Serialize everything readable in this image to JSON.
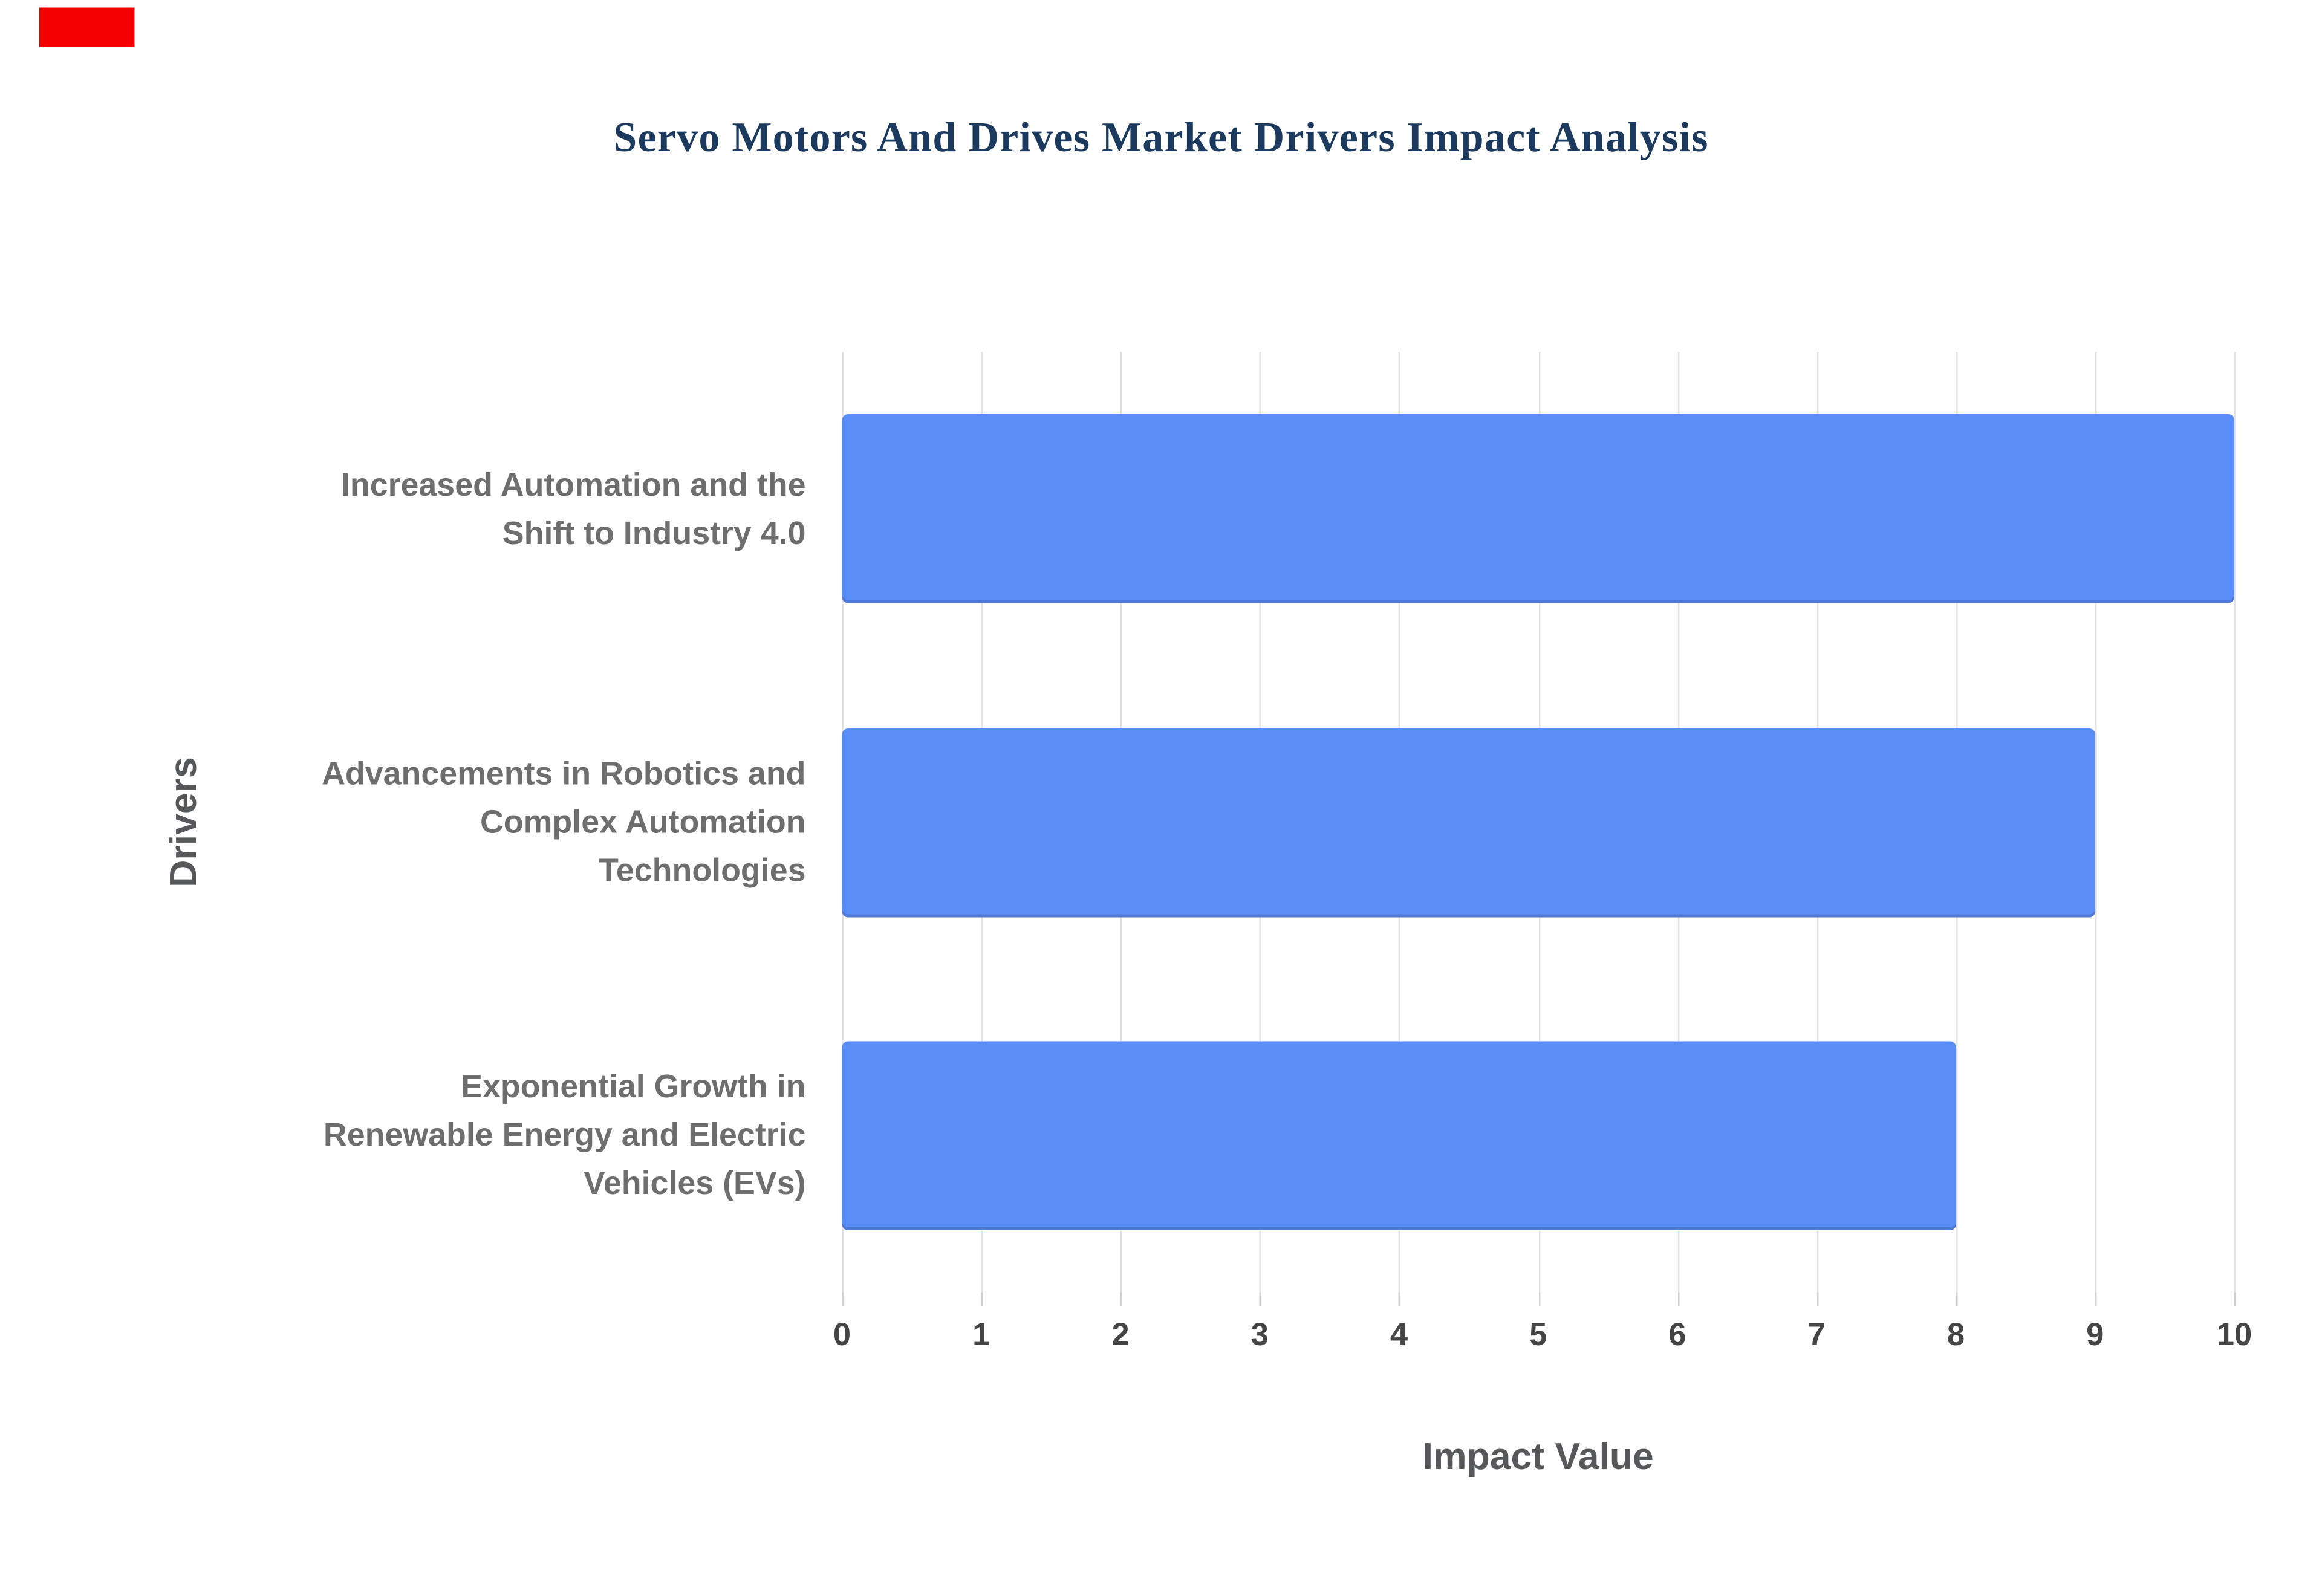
{
  "page": {
    "background": "#ffffff",
    "red_marker_color": "#f40000"
  },
  "chart_data": {
    "type": "bar",
    "orientation": "horizontal",
    "title": "Servo Motors And Drives Market Drivers Impact Analysis",
    "categories": [
      "Increased Automation and the Shift to Industry 4.0",
      "Advancements in Robotics and Complex Automation Technologies",
      "Exponential Growth in Renewable Energy and Electric Vehicles (EVs)"
    ],
    "category_lines": [
      [
        "Increased Automation and the",
        "Shift to Industry 4.0"
      ],
      [
        "Advancements in Robotics and",
        "Complex Automation",
        "Technologies"
      ],
      [
        "Exponential Growth in",
        "Renewable Energy and Electric",
        "Vehicles (EVs)"
      ]
    ],
    "values": [
      10,
      9,
      8
    ],
    "xlabel": "Impact Value",
    "ylabel": "Drivers",
    "xlim": [
      0,
      10
    ],
    "xticks": [
      0,
      1,
      2,
      3,
      4,
      5,
      6,
      7,
      8,
      9,
      10
    ],
    "bar_color": "#5b8df6",
    "grid": true,
    "legend": false
  }
}
